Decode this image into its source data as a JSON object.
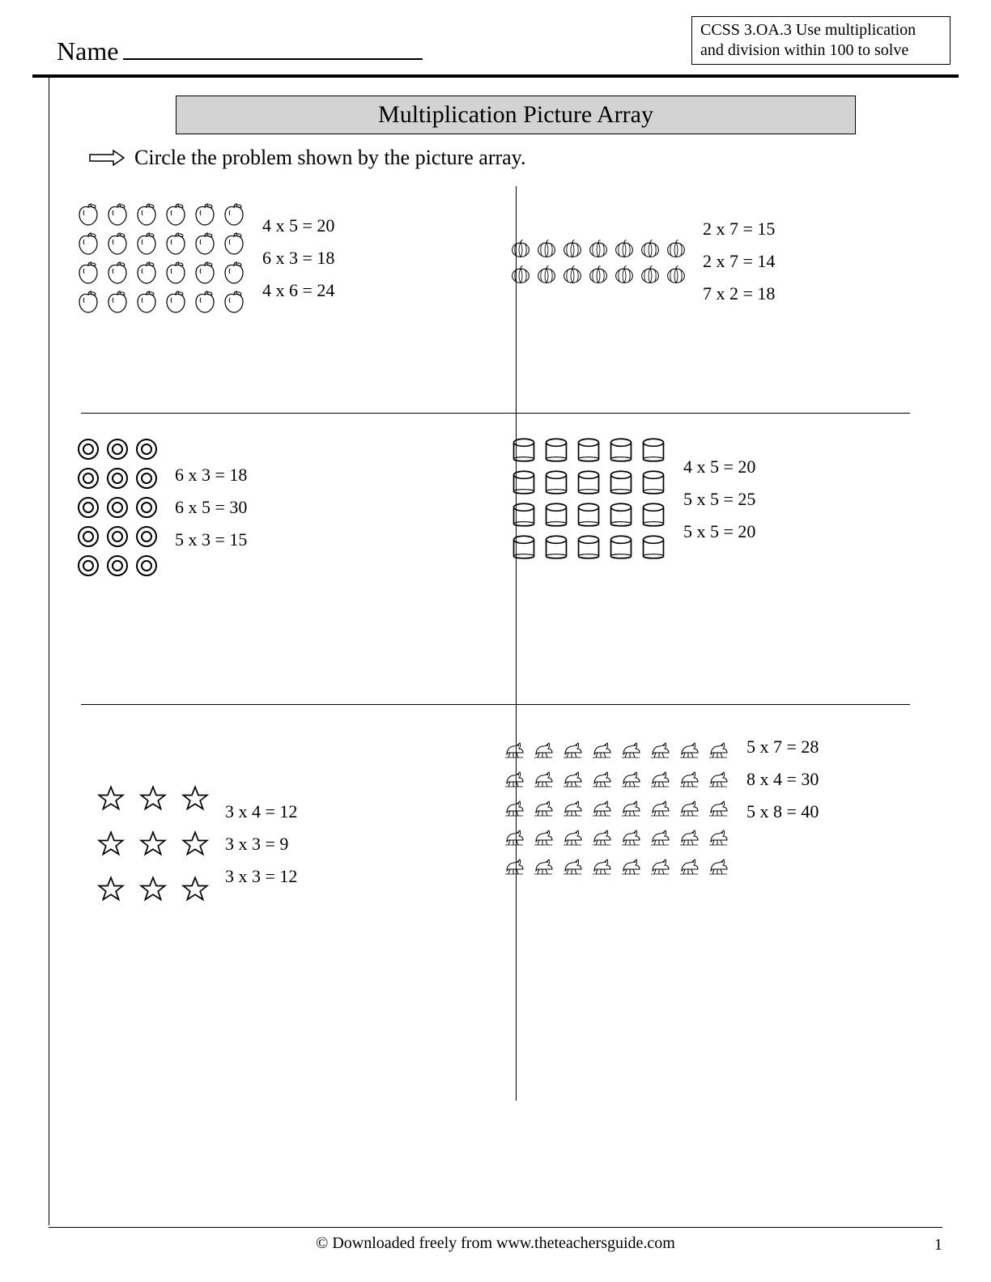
{
  "header": {
    "name_label": "Name",
    "ccss_text": "CCSS  3.OA.3  Use multiplication and  division within 100 to solve"
  },
  "title": "Multiplication Picture Array",
  "instruction": "Circle the problem shown by the picture array.",
  "problems": [
    {
      "id": "p1",
      "rows": 4,
      "cols": 6,
      "icon": "apple",
      "icon_size": "ico",
      "options": [
        "4 x 5 = 20",
        "6 x 3 = 18",
        "4 x 6 = 24"
      ]
    },
    {
      "id": "p2",
      "rows": 2,
      "cols": 7,
      "icon": "pumpkin",
      "icon_size": "ico-sm",
      "options": [
        "2 x 7 = 15",
        "2 x 7 = 14",
        "7 x 2 = 18"
      ]
    },
    {
      "id": "p3",
      "rows": 5,
      "cols": 3,
      "icon": "circle",
      "icon_size": "ico",
      "options": [
        "6 x 3 = 18",
        "6 x 5 = 30",
        "5 x 3 = 15"
      ]
    },
    {
      "id": "p4",
      "rows": 4,
      "cols": 5,
      "icon": "can",
      "icon_size": "ico-lg",
      "options": [
        "4 x 5 = 20",
        "5 x 5 = 25",
        "5 x 5 = 20"
      ]
    },
    {
      "id": "p5",
      "rows": 3,
      "cols": 3,
      "icon": "star",
      "icon_size": "ico-star",
      "options": [
        "3 x 4 = 12",
        "3 x 3 = 9",
        "3 x 3 = 12"
      ]
    },
    {
      "id": "p6",
      "rows": 5,
      "cols": 8,
      "icon": "bird",
      "icon_size": "ico",
      "options": [
        "5 x 7 = 28",
        "8 x 4 = 30",
        "5 x 8 = 40"
      ]
    }
  ],
  "footer": {
    "text": "© Downloaded freely from www.theteachersguide.com",
    "page": "1"
  },
  "colors": {
    "bg": "#ffffff",
    "ink": "#000000",
    "title_fill": "#d3d3d3"
  }
}
